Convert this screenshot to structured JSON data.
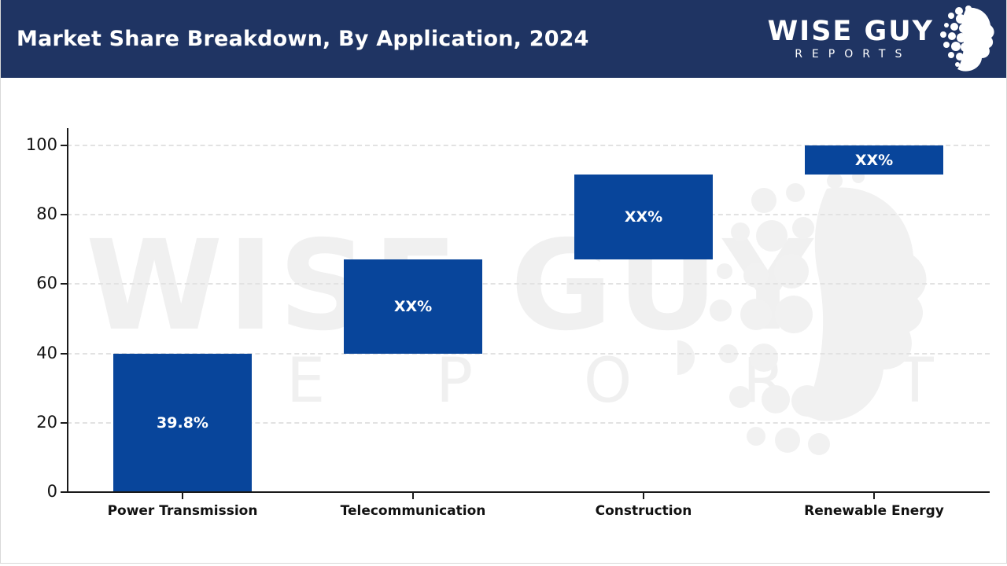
{
  "page": {
    "background": "#ffffff",
    "border_color": "#d9d9d9"
  },
  "header": {
    "background": "#1f3463",
    "title": "Market Share Breakdown, By Application, 2024",
    "logo_line1": "WISE GUY",
    "logo_line2": "REPORTS"
  },
  "watermark": {
    "line1": "WISE GUY",
    "line2": "REPORTS",
    "line2_spaced": "R E P O R T S",
    "color": "#f0f0f0"
  },
  "chart_data": {
    "type": "bar",
    "subtype": "waterfall",
    "title": "Market Share Breakdown, By Application, 2024",
    "xlabel": "",
    "ylabel": "",
    "categories": [
      "Power Transmission",
      "Telecommunication",
      "Construction",
      "Renewable Energy"
    ],
    "segments": [
      {
        "category": "Power Transmission",
        "start": 0,
        "end": 39.8,
        "value": 39.8,
        "label": "39.8%"
      },
      {
        "category": "Telecommunication",
        "start": 39.8,
        "end": 67.2,
        "value": 27.4,
        "label": "XX%"
      },
      {
        "category": "Construction",
        "start": 67.2,
        "end": 91.6,
        "value": 24.4,
        "label": "XX%"
      },
      {
        "category": "Renewable Energy",
        "start": 91.6,
        "end": 100,
        "value": 8.4,
        "label": "XX%"
      }
    ],
    "yticks": [
      0,
      20,
      40,
      60,
      80,
      100
    ],
    "ylim": [
      0,
      105
    ],
    "grid": "horizontal-dashed",
    "legend": "none",
    "bar_color": "#08459b",
    "bar_label_color": "#ffffff",
    "axis_color": "#1a1a1a",
    "gridline_color": "#e2e2e2"
  }
}
